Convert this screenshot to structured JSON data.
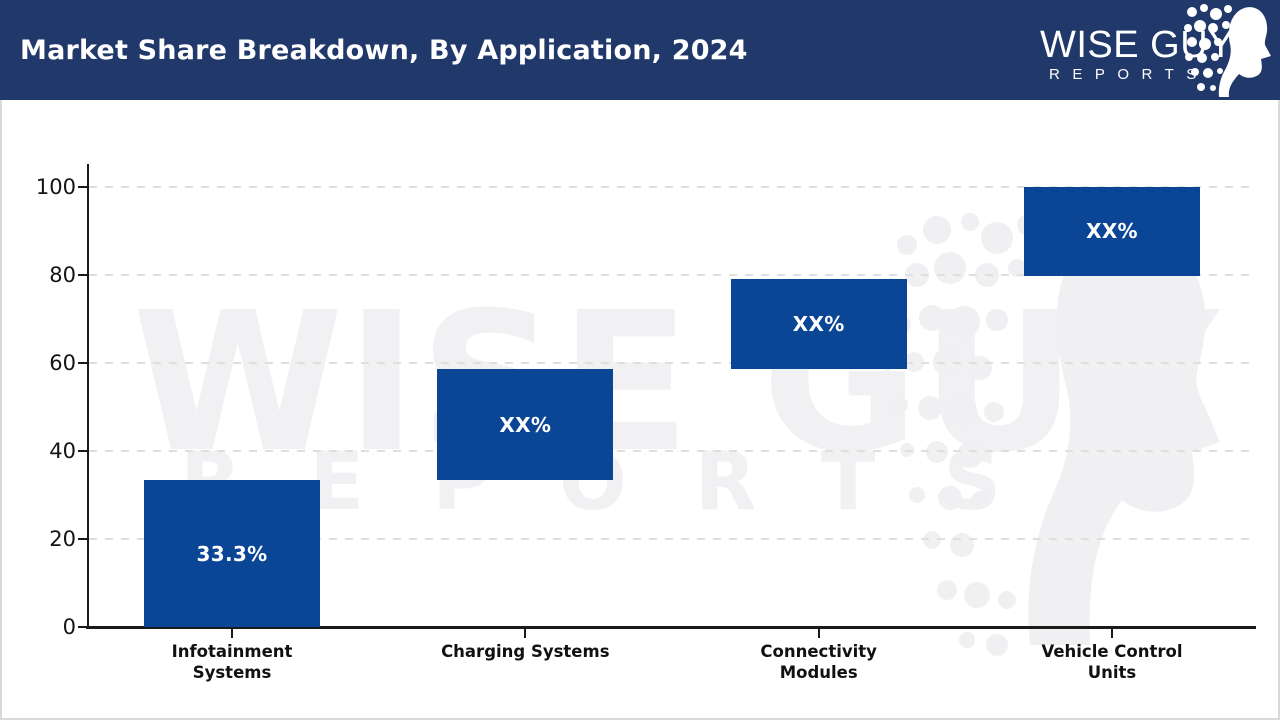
{
  "header": {
    "title": "Market Share Breakdown, By Application, 2024",
    "logo": {
      "name": "WISE GUY",
      "tagline": "REPORTS"
    }
  },
  "watermark": {
    "name": "WISE GUY",
    "tagline": "REPORTS"
  },
  "colors": {
    "header_bg": "#20386a",
    "header_text": "#ffffff",
    "bar_fill": "#0b4596",
    "bar_label": "#ffffff",
    "axis": "#1a1a1a",
    "grid": "#dfdfdf",
    "tick_text": "#141414",
    "watermark": "#f1f1f4",
    "page_border": "#d9d9d9"
  },
  "chart_data": {
    "type": "bar",
    "subtype": "waterfall-floating-bars",
    "title": "Market Share Breakdown, By Application, 2024",
    "categories": [
      "Infotainment\nSystems",
      "Charging Systems",
      "Connectivity\nModules",
      "Vehicle Control\nUnits"
    ],
    "bars": [
      {
        "category": "Infotainment Systems",
        "start": 0,
        "end": 33.3,
        "label": "33.3%"
      },
      {
        "category": "Charging Systems",
        "start": 33.3,
        "end": 58.6,
        "label": "XX%"
      },
      {
        "category": "Connectivity Modules",
        "start": 58.7,
        "end": 79.1,
        "label": "XX%"
      },
      {
        "category": "Vehicle Control Units",
        "start": 79.8,
        "end": 100,
        "label": "XX%"
      }
    ],
    "xlabel": "",
    "ylabel": "",
    "ylim": [
      0,
      105
    ],
    "y_ticks": [
      0,
      20,
      40,
      60,
      80,
      100
    ],
    "grid": "horizontal dashed",
    "legend": "none"
  }
}
